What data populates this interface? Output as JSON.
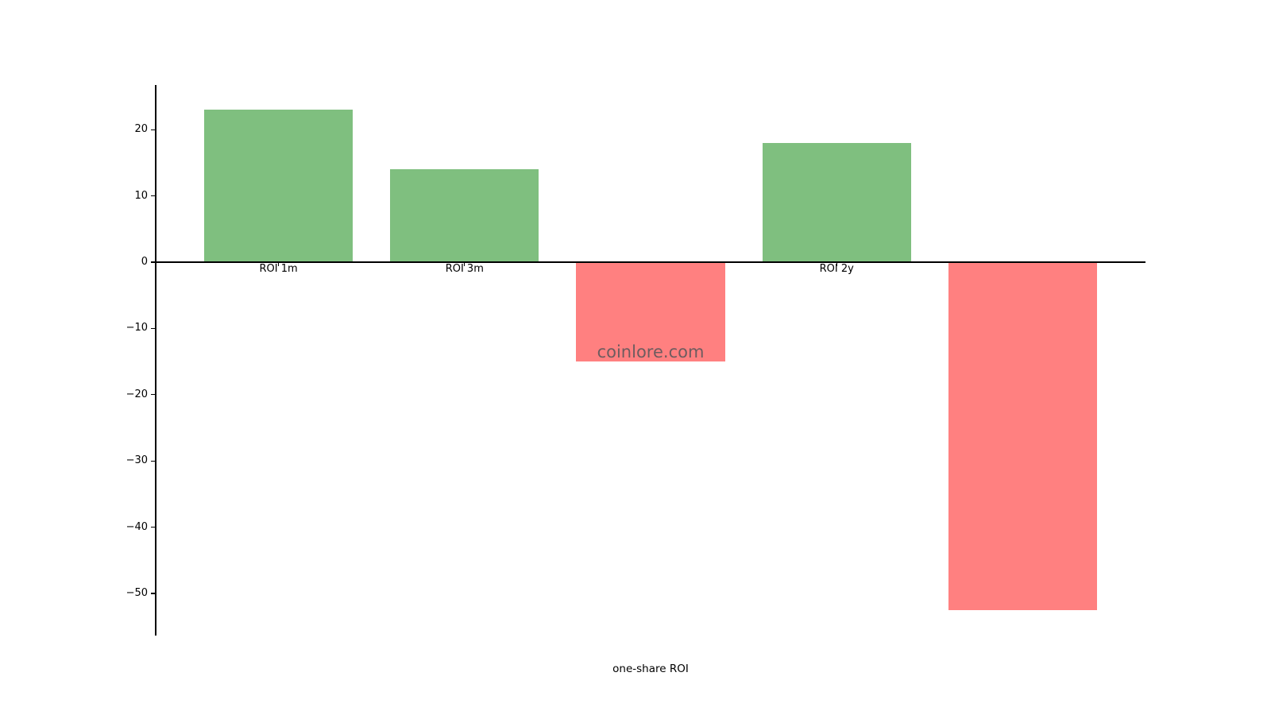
{
  "chart_data": {
    "type": "bar",
    "title": "",
    "xlabel": "one-share ROI",
    "ylabel": "",
    "categories": [
      "ROI 1m",
      "ROI 3m",
      "",
      "ROI 2y",
      ""
    ],
    "values": [
      23,
      14,
      -15,
      18,
      -52.5
    ],
    "bar_width": 0.8,
    "positive_color": "#7fbf7f",
    "negative_color": "#ff8080",
    "axis_color": "#000000",
    "text_color": "#000000",
    "y_ticks": [
      20,
      10,
      0,
      -10,
      -20,
      -30,
      -40,
      -50
    ],
    "ylim": [
      -56.3,
      26.8
    ],
    "xlim": [
      -0.66,
      4.66
    ],
    "grid": false,
    "legend": null,
    "watermark": {
      "text": "coinlore.com",
      "color": "#55565a"
    }
  }
}
